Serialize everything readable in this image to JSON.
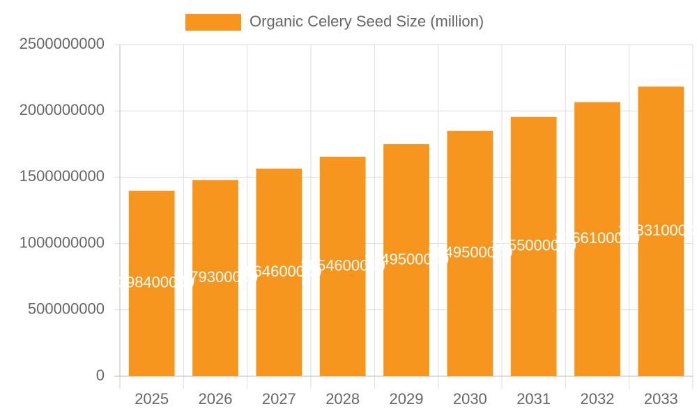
{
  "chart_data": {
    "type": "bar",
    "legend": "Organic Celery Seed Size (million)",
    "categories": [
      "2025",
      "2026",
      "2027",
      "2028",
      "2029",
      "2030",
      "2031",
      "2032",
      "2033"
    ],
    "values": [
      1398400000,
      1479300000,
      1564600000,
      1654600000,
      1749500000,
      1849500000,
      1955000000,
      2066100000,
      2183100000
    ],
    "color": "#f7961e",
    "ylim": [
      0,
      2500000000
    ],
    "yticks": [
      0,
      500000000,
      1000000000,
      1500000000,
      2000000000,
      2500000000
    ],
    "grid": true,
    "legend_position": "top"
  }
}
